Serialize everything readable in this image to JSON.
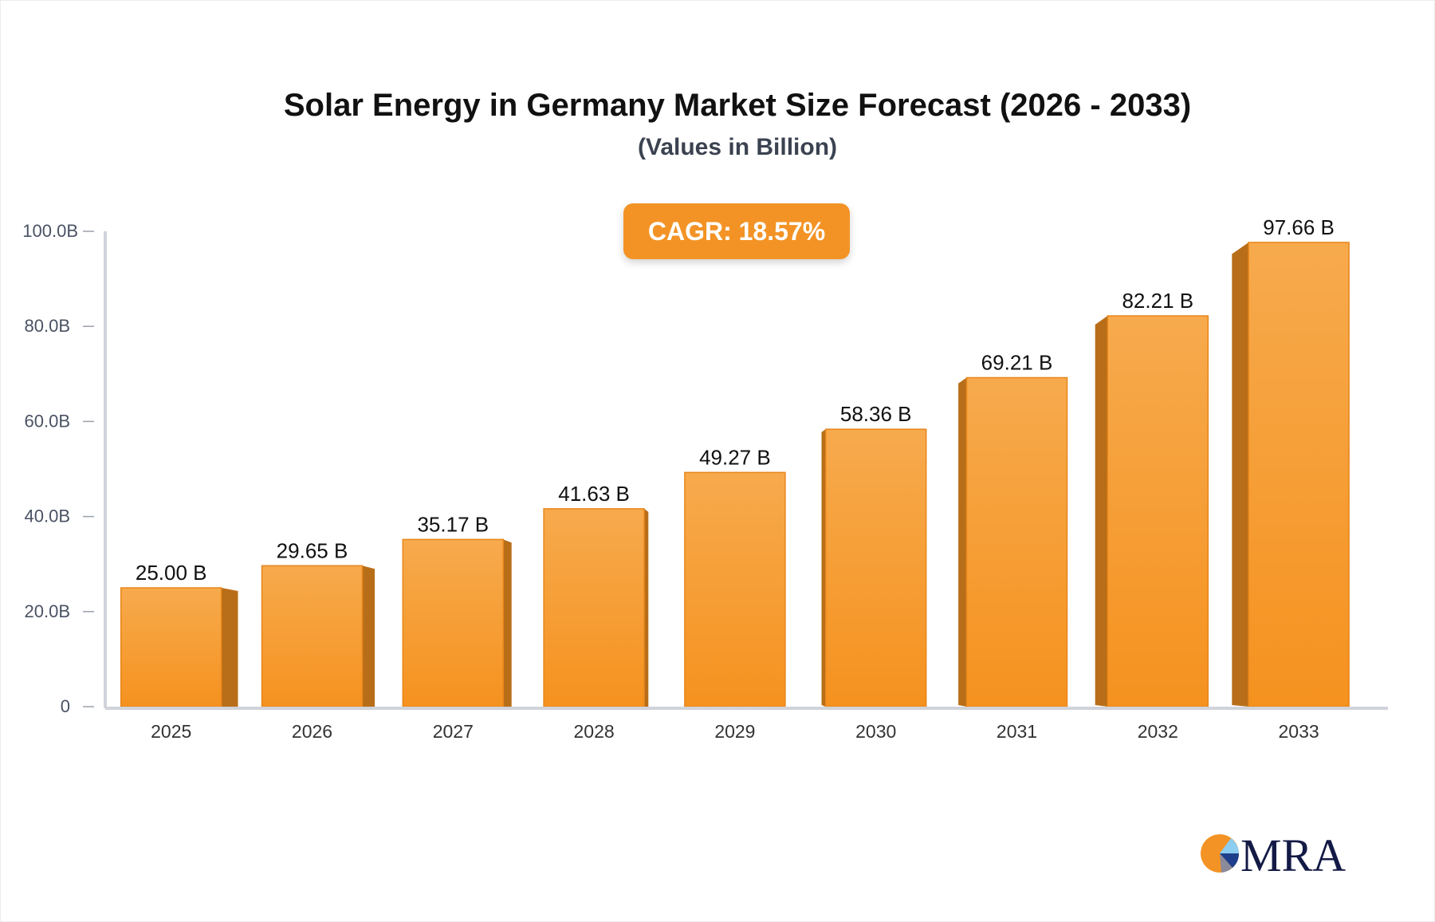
{
  "chart_data": {
    "type": "bar",
    "title": "Solar Energy in Germany Market Size Forecast (2026 - 2033)",
    "subtitle": "(Values in Billion)",
    "annotation": "CAGR: 18.57%",
    "categories": [
      "2025",
      "2026",
      "2027",
      "2028",
      "2029",
      "2030",
      "2031",
      "2032",
      "2033"
    ],
    "values": [
      25.0,
      29.65,
      35.17,
      41.63,
      49.27,
      58.36,
      69.21,
      82.21,
      97.66
    ],
    "data_labels": [
      "25.00 B",
      "29.65 B",
      "35.17 B",
      "41.63 B",
      "49.27 B",
      "58.36 B",
      "69.21 B",
      "82.21 B",
      "97.66 B"
    ],
    "yticks": [
      0,
      20,
      40,
      60,
      80,
      100
    ],
    "ytick_labels": [
      "0",
      "20.0B",
      "40.0B",
      "60.0B",
      "80.0B",
      "100.0B"
    ],
    "ylim": [
      0,
      100
    ],
    "xlabel": "",
    "ylabel": "",
    "grid": false,
    "colors": {
      "bar_top": "#f7aa4d",
      "bar_bottom": "#f5921f",
      "bar_side": "#b86e18",
      "cagr_badge": "#f39325",
      "axis": "#d1d3da"
    }
  },
  "logo": {
    "text": "MRA"
  }
}
